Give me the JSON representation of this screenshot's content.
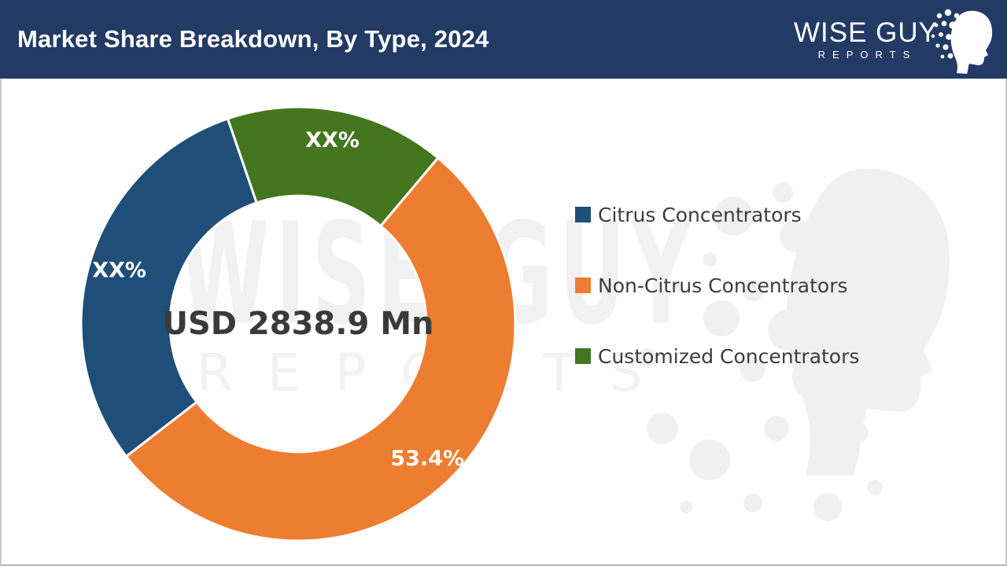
{
  "header": {
    "title": "Market Share Breakdown, By Type, 2024",
    "bg_color": "#233A64",
    "logo": {
      "line1": "WISE GUY",
      "line2": "REPORTS"
    }
  },
  "watermark": {
    "line1": "WISE GUY",
    "line2": "REPORTS"
  },
  "chart_data": {
    "type": "pie",
    "donut": true,
    "title": "Market Share Breakdown, By Type, 2024",
    "center_label": "USD 2838.9 Mn",
    "legend_position": "right",
    "start_angle_deg": 49.9,
    "ccw_order": [
      2,
      0,
      1
    ],
    "inner_radius_ratio": 0.59,
    "slice_gap_color": "#ffffff",
    "label_color": "#ffffff",
    "slices": [
      {
        "name": "Citrus Concentrators",
        "label": "XX%",
        "value_pct": 30.2,
        "color": "#1F4E79"
      },
      {
        "name": "Non-Citrus Concentrators",
        "label": "53.4%",
        "value_pct": 53.4,
        "color": "#ED7D31"
      },
      {
        "name": "Customized Concentrators",
        "label": "XX%",
        "value_pct": 16.4,
        "color": "#44751F"
      }
    ]
  }
}
